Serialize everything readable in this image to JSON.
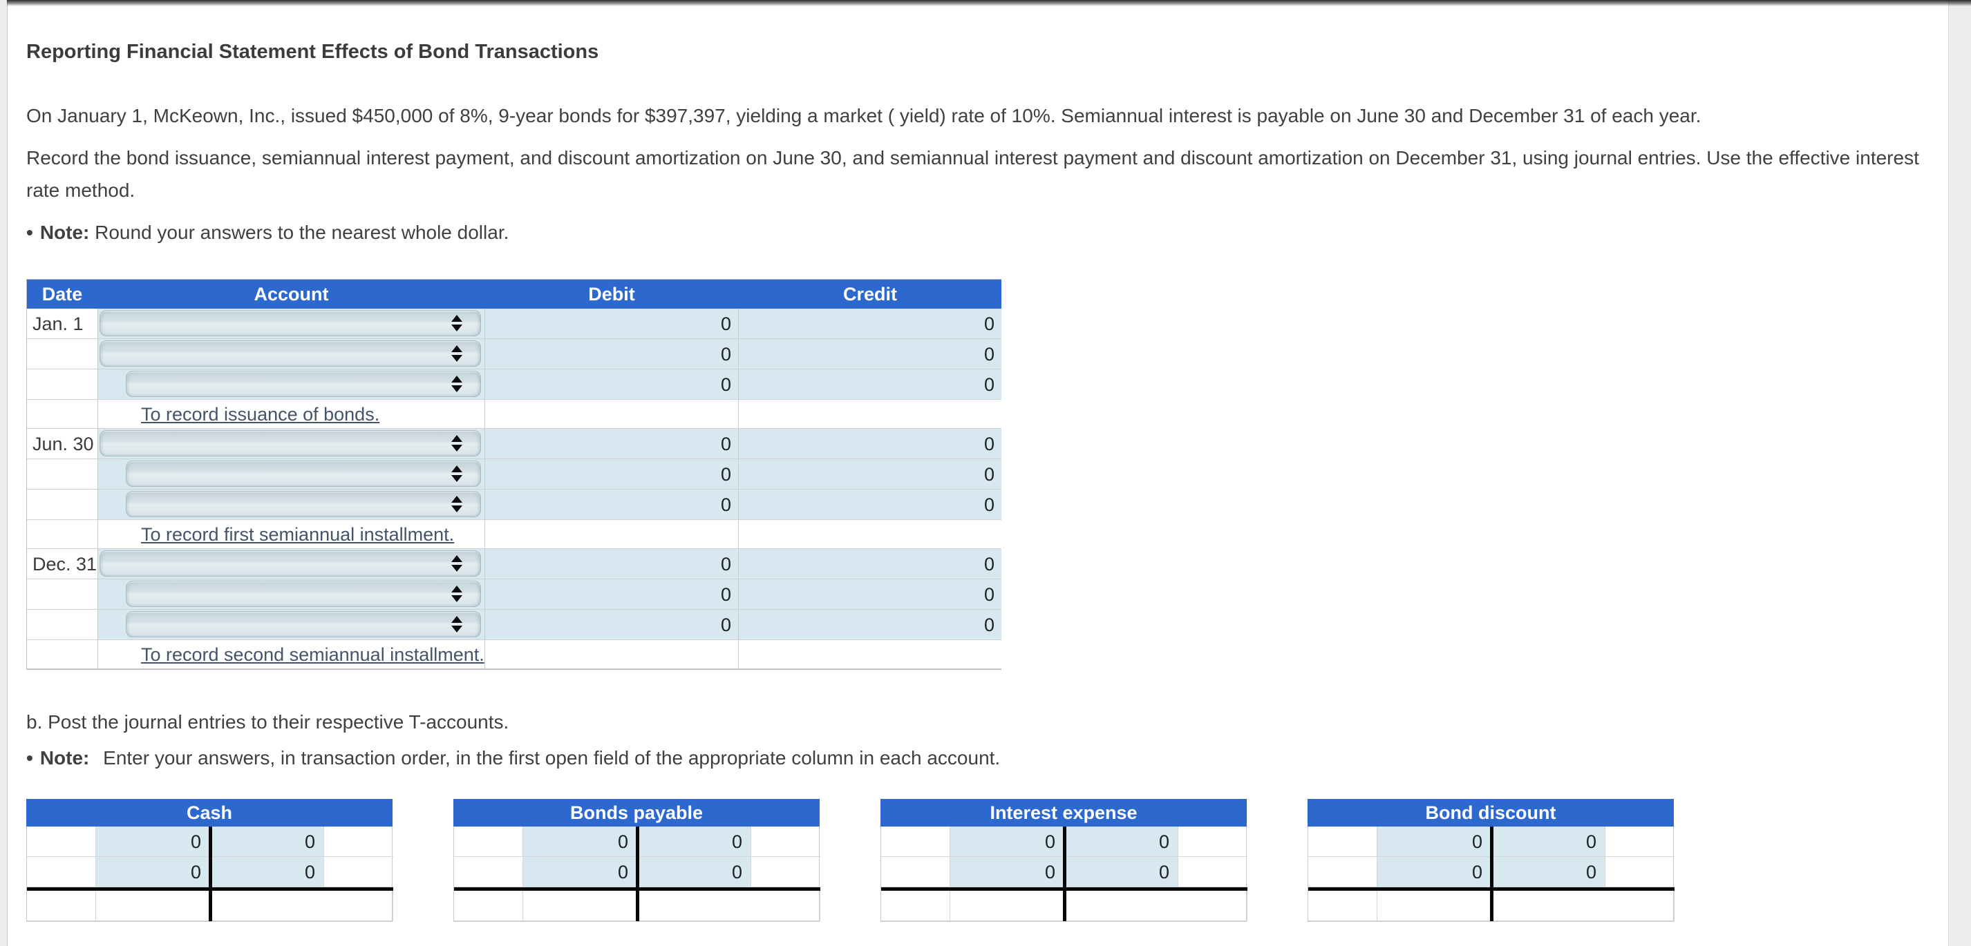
{
  "colors": {
    "header_blue": "#2d68ce",
    "input_field_blue": "#d7e8f0",
    "memo_text": "#44546b",
    "page_background": "#ebedee"
  },
  "intro": {
    "title": "Reporting Financial Statement Effects of Bond Transactions",
    "paragraph1": "On January 1, McKeown, Inc., issued $450,000 of 8%, 9-year bonds for $397,397, yielding a market ( yield) rate of 10%. Semiannual interest is payable on June 30 and December 31 of each year.",
    "paragraph2": "Record the bond issuance, semiannual interest payment, and discount amortization on June 30, and semiannual interest payment and discount amortization on December 31, using journal entries. Use the effective interest rate method.",
    "note1": {
      "bullet": "•",
      "label": "Note:",
      "text": "Round your answers to the nearest whole dollar."
    }
  },
  "journal": {
    "headers": [
      "Date",
      "Account",
      "Debit",
      "Credit"
    ],
    "groups": [
      {
        "date": "Jan. 1",
        "rows": [
          {
            "indent": false,
            "account_value": "",
            "debit": "0",
            "credit": "0"
          },
          {
            "indent": false,
            "account_value": "",
            "debit": "0",
            "credit": "0"
          },
          {
            "indent": true,
            "account_value": "",
            "debit": "0",
            "credit": "0"
          }
        ],
        "memo": "To record issuance of bonds."
      },
      {
        "date": "Jun. 30",
        "rows": [
          {
            "indent": false,
            "account_value": "",
            "debit": "0",
            "credit": "0"
          },
          {
            "indent": true,
            "account_value": "",
            "debit": "0",
            "credit": "0"
          },
          {
            "indent": true,
            "account_value": "",
            "debit": "0",
            "credit": "0"
          }
        ],
        "memo": "To record first semiannual installment."
      },
      {
        "date": "Dec. 31",
        "rows": [
          {
            "indent": false,
            "account_value": "",
            "debit": "0",
            "credit": "0"
          },
          {
            "indent": true,
            "account_value": "",
            "debit": "0",
            "credit": "0"
          },
          {
            "indent": true,
            "account_value": "",
            "debit": "0",
            "credit": "0"
          }
        ],
        "memo": "To record second semiannual installment."
      }
    ]
  },
  "section_b": {
    "heading": "b. Post the journal entries to their respective T-accounts.",
    "note2": {
      "bullet": "•",
      "label": "Note:",
      "text": "Enter your answers, in transaction order, in the first open field of the appropriate column in each account."
    }
  },
  "t_accounts": [
    {
      "title": "Cash",
      "rows": [
        {
          "debit": "0",
          "credit": "0"
        },
        {
          "debit": "0",
          "credit": "0"
        }
      ]
    },
    {
      "title": "Bonds payable",
      "rows": [
        {
          "debit": "0",
          "credit": "0"
        },
        {
          "debit": "0",
          "credit": "0"
        }
      ]
    },
    {
      "title": "Interest expense",
      "rows": [
        {
          "debit": "0",
          "credit": "0"
        },
        {
          "debit": "0",
          "credit": "0"
        }
      ]
    },
    {
      "title": "Bond discount",
      "rows": [
        {
          "debit": "0",
          "credit": "0"
        },
        {
          "debit": "0",
          "credit": "0"
        }
      ]
    }
  ]
}
